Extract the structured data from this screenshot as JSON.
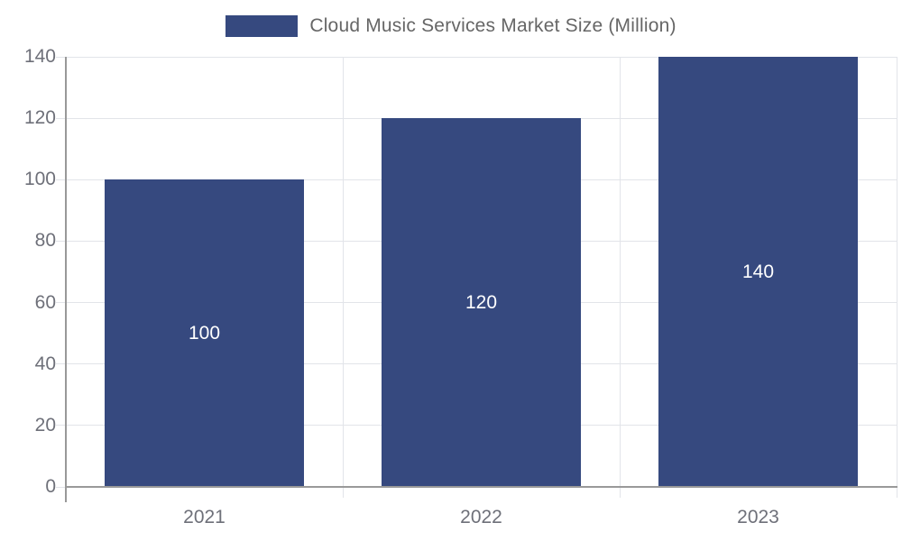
{
  "legend": {
    "label": "Cloud Music Services Market Size (Million)"
  },
  "chart_data": {
    "type": "bar",
    "title": "Cloud Music Services Market Size (Million)",
    "categories": [
      "2021",
      "2022",
      "2023"
    ],
    "values": [
      100,
      120,
      140
    ],
    "bar_value_labels": [
      "100",
      "120",
      "140"
    ],
    "xlabel": "",
    "ylabel": "",
    "ylim": [
      0,
      140
    ],
    "yticks": [
      0,
      20,
      40,
      60,
      80,
      100,
      120,
      140
    ],
    "grid": true,
    "legend_position": "top-center",
    "colors": {
      "bar": "#36497F",
      "grid": "#E2E4E9",
      "axis": "#999999",
      "tick_label": "#6E7079",
      "title": "#666666",
      "value_label": "#FFFFFF",
      "background": "#FFFFFF"
    }
  }
}
